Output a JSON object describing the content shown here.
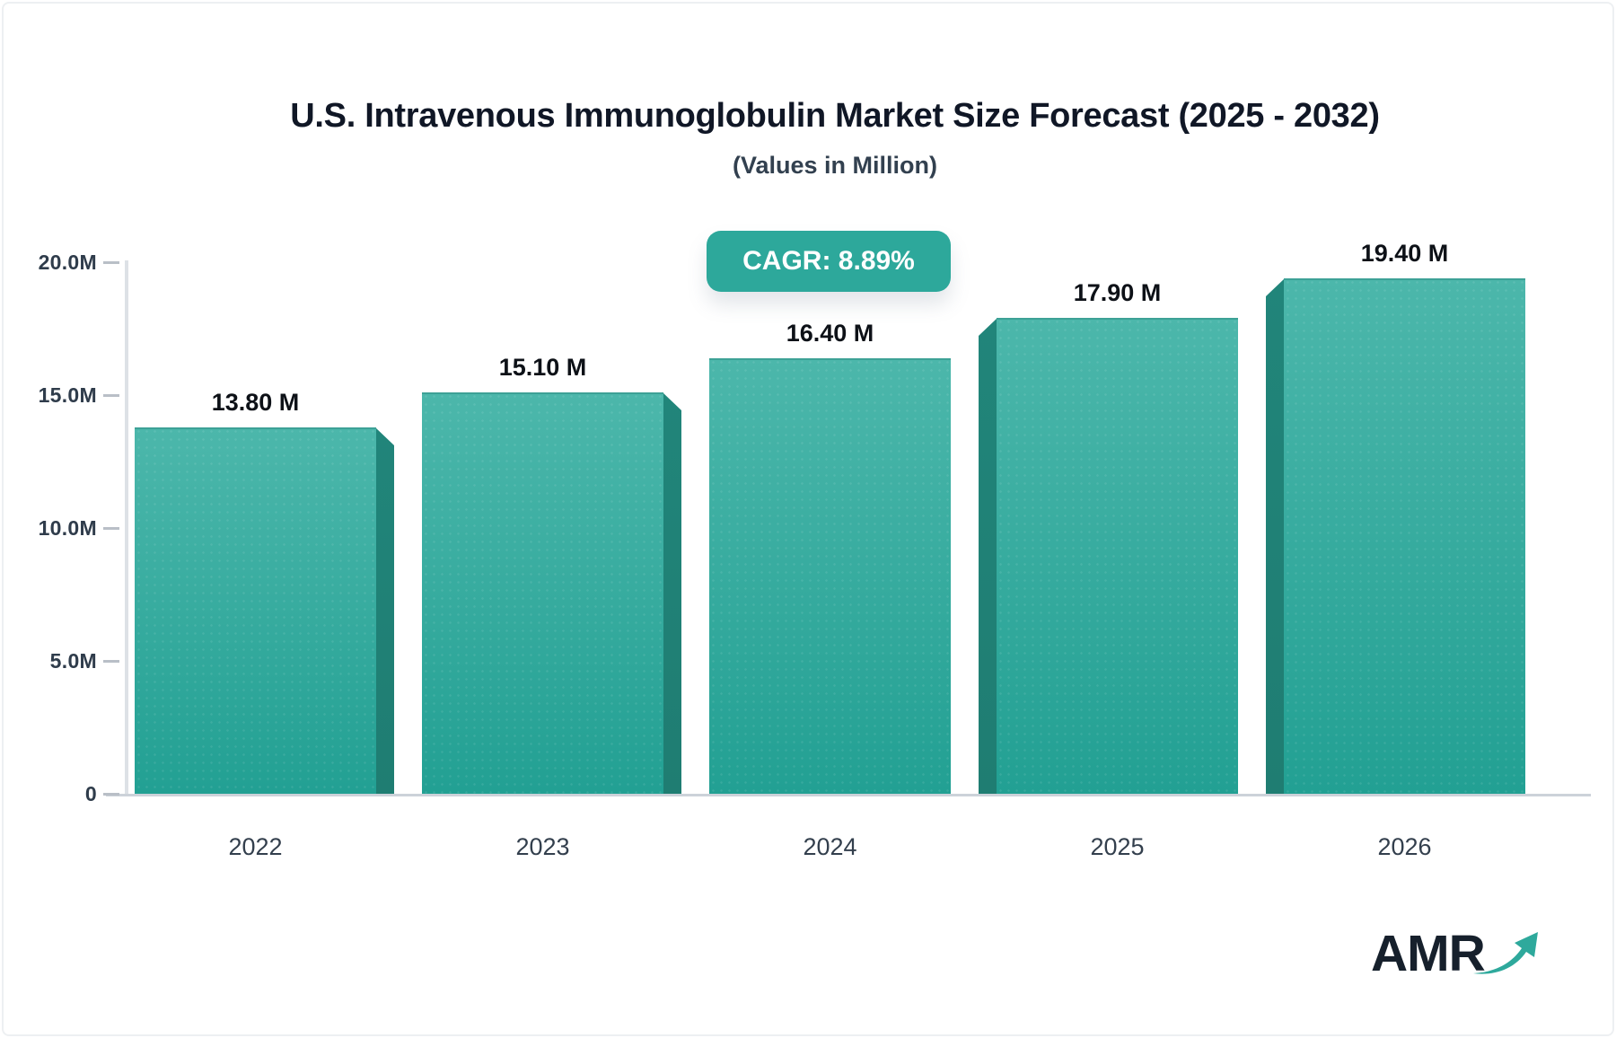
{
  "header": {
    "title": "U.S. Intravenous Immunoglobulin Market Size Forecast (2025 - 2032)",
    "subtitle": "(Values in Million)"
  },
  "badge": {
    "label": "CAGR: 8.89%"
  },
  "logo": {
    "text": "AMR",
    "arrow_icon": "trend-up-arrow"
  },
  "colors": {
    "accent": "#2DA89B",
    "bar_top": "#4CB7AB",
    "bar_bottom": "#22A093",
    "bar_side": "#1F7D72",
    "badge_bg": "#2DA89B",
    "badge_text": "#FFFFFF",
    "axis_line": "#CCD2D9",
    "axis_text": "#2F3C4B",
    "value_text": "#0D1117",
    "title_text": "#101726",
    "logo_text": "#16202C"
  },
  "chart_data": {
    "type": "bar",
    "title": "U.S. Intravenous Immunoglobulin Market Size Forecast (2025 - 2032)",
    "subtitle": "(Values in Million)",
    "annotation": "CAGR: 8.89%",
    "categories": [
      "2022",
      "2023",
      "2024",
      "2025",
      "2026"
    ],
    "values": [
      13.8,
      15.1,
      16.4,
      17.9,
      19.4
    ],
    "value_labels": [
      "13.80 M",
      "15.10 M",
      "16.40 M",
      "17.90 M",
      "19.40 M"
    ],
    "xlabel": "",
    "ylabel": "",
    "ylim": [
      0,
      20
    ],
    "y_ticks": [
      {
        "value": 0,
        "label": "0"
      },
      {
        "value": 5,
        "label": "5.0M"
      },
      {
        "value": 10,
        "label": "10.0M"
      },
      {
        "value": 15,
        "label": "15.0M"
      },
      {
        "value": 20,
        "label": "20.0M"
      }
    ],
    "grid": false,
    "legend": false
  }
}
